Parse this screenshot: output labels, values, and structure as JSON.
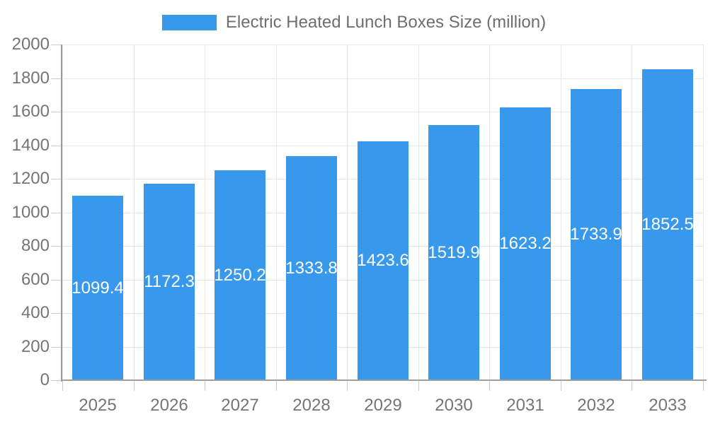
{
  "chart_data": {
    "type": "bar",
    "title": "Electric Heated Lunch Boxes Size (million)",
    "legend_position": "top",
    "categories": [
      "2025",
      "2026",
      "2027",
      "2028",
      "2029",
      "2030",
      "2031",
      "2032",
      "2033"
    ],
    "values": [
      1099.4,
      1172.3,
      1250.2,
      1333.8,
      1423.6,
      1519.9,
      1623.2,
      1733.9,
      1852.5
    ],
    "value_labels": [
      "1099.4",
      "1172.3",
      "1250.2",
      "1333.8",
      "1423.6",
      "1519.9",
      "1623.2",
      "1733.9",
      "1852.5"
    ],
    "xlabel": "",
    "ylabel": "",
    "ylim": [
      0,
      2000
    ],
    "yticks": [
      0,
      200,
      400,
      600,
      800,
      1000,
      1200,
      1400,
      1600,
      1800,
      2000
    ],
    "grid": true,
    "colors": {
      "bar": "#3899EC",
      "value_label": "#FFFFFF",
      "grid": "#E6E6E6",
      "tick": "#CCCCCC",
      "axis": "#9E9E9E",
      "tick_label": "#757575",
      "legend_text": "#6E6E6E",
      "background": "#FFFFFF"
    }
  }
}
